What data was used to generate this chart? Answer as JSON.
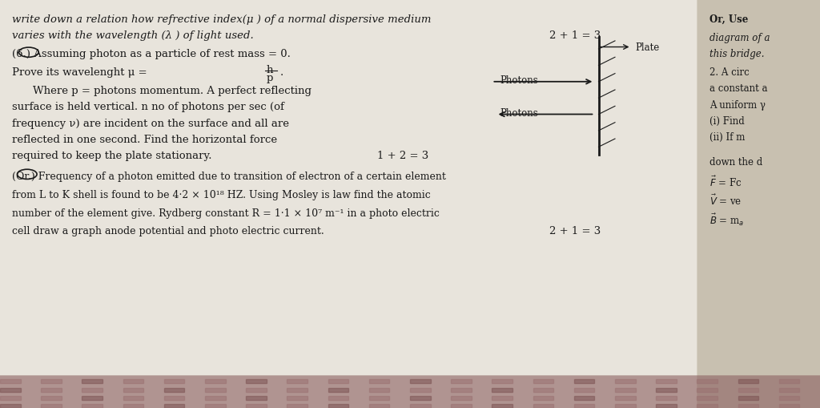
{
  "bg_color": "#d8d0c0",
  "page_bg": "#e8e4dc",
  "fig_width": 10.24,
  "fig_height": 5.09,
  "title_line": "write down a relation how refrective index(μ ) of a normal dispersive medium",
  "line2": "varies with the wavelength (λ ) of light used.",
  "marks1": "2 + 1 = 3",
  "right_col_line1": "Or, Use",
  "right_col_line2": "diagram of a",
  "right_col_line3": "this bridge.",
  "right_col_line4": "2. A circ",
  "right_col_line5": "a constant a",
  "right_col_line6": "A uniform γ",
  "right_col_line7": "(i) Find",
  "right_col_line8": "(ii) If m",
  "right_col_line9": "down the d",
  "right_col_line10": "⃗F = Fc",
  "right_col_line11": "⃗V = ve",
  "right_col_line12": "⃗B = mₐ",
  "q6_text": "(6.) Assuming photon as a particle of rest mass = 0.",
  "prove_text": "Prove its wavelenght μ = h/p.",
  "where_text": "Where p = photons momentum. A perfect reflecting",
  "surface_text": "surface is held vertical. n no of photons per sec (of",
  "frequency_text": "frequency ν) are incident on the surface and all are",
  "reflected_text": "reflected in one second. Find the horizontal force",
  "required_text": "required to keep the plate stationary.",
  "marks2": "1 + 2 = 3",
  "or_text": "(Or.) Frequency of a photon emitted due to transition of electron of a certain element",
  "from_text": "from L to K shell is found to be 4·2 × 10¹⁸ HZ. Using Mosley is law find the atomic",
  "number_text": "number of the element give. Rydberg constant R = 1·1 × 10⁷ m⁻¹ in a photo electric",
  "cell_text": "cell draw a graph anode potential and photo electric current.",
  "marks3": "2 + 1 = 3",
  "plate_label": "→ Plate",
  "photons1_label": "→ Photons",
  "photons2_label": "Photons ←",
  "font_size_main": 9.5,
  "font_size_small": 8.5,
  "text_color": "#1a1a1a"
}
